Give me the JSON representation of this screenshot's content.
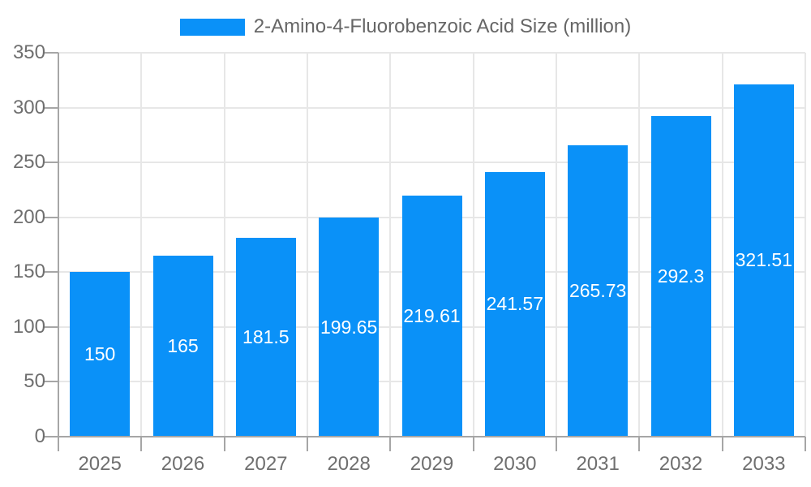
{
  "chart_data": {
    "type": "bar",
    "title": "2-Amino-4-Fluorobenzoic Acid Size (million)",
    "series_name": "2-Amino-4-Fluorobenzoic Acid Size (million)",
    "categories": [
      "2025",
      "2026",
      "2027",
      "2028",
      "2029",
      "2030",
      "2031",
      "2032",
      "2033"
    ],
    "values": [
      150,
      165,
      181.5,
      199.65,
      219.61,
      241.57,
      265.73,
      292.3,
      321.51
    ],
    "value_labels": [
      "150",
      "165",
      "181.5",
      "199.65",
      "219.61",
      "241.57",
      "265.73",
      "292.3",
      "321.51"
    ],
    "xlabel": "",
    "ylabel": "",
    "ylim": [
      0,
      350
    ],
    "y_ticks": [
      0,
      50,
      100,
      150,
      200,
      250,
      300,
      350
    ],
    "grid": true,
    "legend_position": "top",
    "colors": {
      "bar": "#0A91F8",
      "grid": "#e7e7e7",
      "axis": "#a6a6a6",
      "tick_text": "#6f6f6f",
      "legend_text": "#666666",
      "bar_label": "#ffffff",
      "background": "#ffffff"
    }
  }
}
